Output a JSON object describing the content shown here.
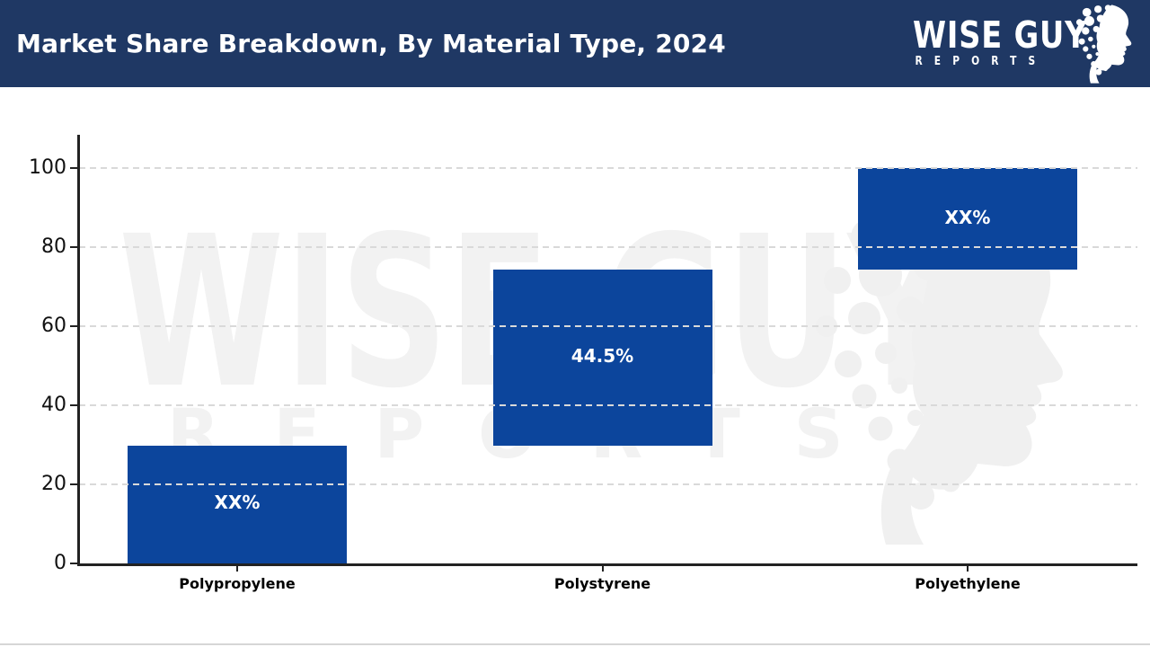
{
  "header": {
    "title": "Market Share Breakdown, By Material Type, 2024",
    "logo_line1": "WISE GUY",
    "logo_line2": "REPORTS"
  },
  "watermark": {
    "line1": "WISE GUY",
    "line2": "REPORTS"
  },
  "colors": {
    "header_bg": "#1f3864",
    "bar": "#0c459c",
    "grid": "#d9d9d9",
    "axis": "#222222",
    "bar_label": "#ffffff",
    "watermark": "#f2f2f2"
  },
  "chart_data": {
    "type": "bar",
    "subtype": "waterfall",
    "title": "Market Share Breakdown, By Material Type, 2024",
    "categories": [
      "Polypropylene",
      "Polystyrene",
      "Polyethylene"
    ],
    "series": [
      {
        "name": "Market share (%)",
        "starts": [
          0,
          29.8,
          74.3
        ],
        "values": [
          29.8,
          44.5,
          25.7
        ]
      }
    ],
    "bar_labels": [
      "XX%",
      "44.5%",
      "XX%"
    ],
    "xlabel": "",
    "ylabel": "",
    "ylim": [
      0,
      100
    ],
    "yticks": [
      0,
      20,
      40,
      60,
      80,
      100
    ],
    "grid": "horizontal-dashed",
    "grid_above_bars": true,
    "legend": "none"
  }
}
